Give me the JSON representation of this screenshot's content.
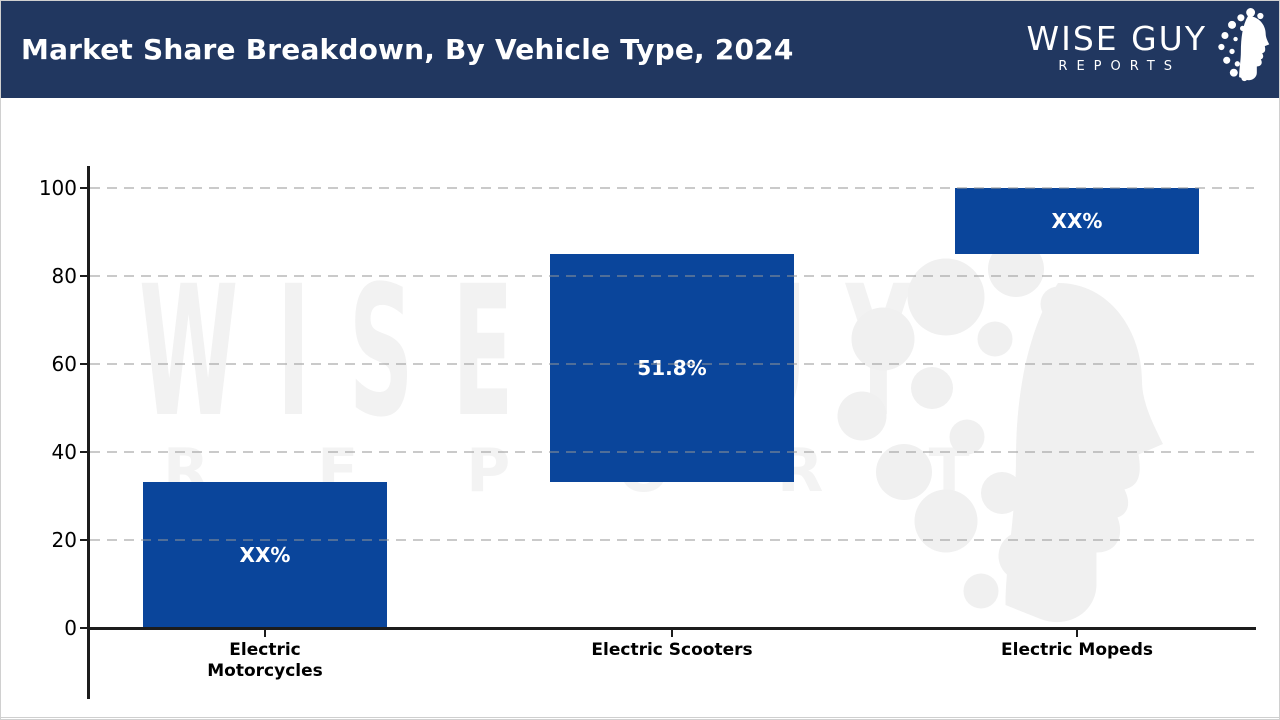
{
  "header": {
    "title": "Market Share Breakdown, By Vehicle Type, 2024",
    "logo": {
      "line1": "WISE GUY",
      "line2": "REPORTS"
    }
  },
  "watermark": {
    "line1": "WISE GUY",
    "line2": "REPORTS"
  },
  "chart_data": {
    "type": "bar",
    "variant": "waterfall",
    "title": "Market Share Breakdown, By Vehicle Type, 2024",
    "categories": [
      "Electric Motorcycles",
      "Electric Scooters",
      "Electric Mopeds"
    ],
    "category_display_lines": [
      [
        "Electric",
        "Motorcycles"
      ],
      [
        "Electric Scooters"
      ],
      [
        "Electric Mopeds"
      ]
    ],
    "segments": [
      {
        "category": "Electric Motorcycles",
        "start": 0,
        "end": 33.2,
        "label": "XX%"
      },
      {
        "category": "Electric Scooters",
        "start": 33.2,
        "end": 85,
        "label": "51.8%"
      },
      {
        "category": "Electric Mopeds",
        "start": 85,
        "end": 100,
        "label": "XX%"
      }
    ],
    "ylim": [
      0,
      100
    ],
    "yticks": [
      0,
      20,
      40,
      60,
      80,
      100
    ],
    "grid": "horizontal-dashed",
    "legend": "none",
    "bar_color": "#0A459B",
    "bar_label_color": "#ffffff"
  },
  "colors": {
    "header_bg": "#213760",
    "bar": "#0A459B",
    "axis": "#1c1c1c",
    "watermark": "#f2f2f2"
  }
}
